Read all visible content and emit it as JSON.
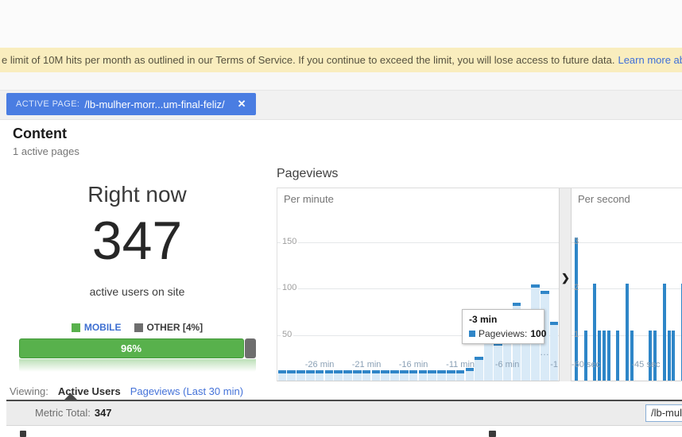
{
  "banner": {
    "text": "e limit of 10M hits per month as outlined in our Terms of Service. If you continue to exceed the limit, you will lose access to future data.",
    "link_text": "Learn more ab"
  },
  "filter_chip": {
    "label": "ACTIVE PAGE:",
    "value": "/lb-mulher-morr...um-final-feliz/",
    "close_icon": "✕"
  },
  "content": {
    "title": "Content",
    "subtitle": "1 active pages"
  },
  "right_now": {
    "title": "Right now",
    "count": "347",
    "subtitle": "active users on site"
  },
  "device_split": {
    "mobile_label": "MOBILE",
    "other_label": "OTHER [4%]",
    "mobile_pct_label": "96%",
    "mobile_color": "#58b14c",
    "other_color": "#6e6e6e"
  },
  "pageviews": {
    "title": "Pageviews",
    "per_minute_label": "Per minute",
    "per_second_label": "Per second",
    "nav_arrow": "❯",
    "ellipsis": "…"
  },
  "tooltip": {
    "title": "-3 min",
    "series_label": "Pageviews:",
    "value": "100"
  },
  "chart_data": [
    {
      "type": "bar",
      "title": "Pageviews per minute",
      "x_unit": "min",
      "x_range": [
        -30,
        -1
      ],
      "values": [
        8,
        8,
        8,
        8,
        8,
        8,
        8,
        8,
        8,
        8,
        8,
        8,
        8,
        8,
        8,
        8,
        8,
        8,
        8,
        8,
        10,
        22,
        42,
        38,
        42,
        80,
        72,
        100,
        93,
        60
      ],
      "tick_labels": [
        "-26 min",
        "-21 min",
        "-16 min",
        "-11 min",
        "-6 min",
        "-1"
      ],
      "tick_indices": [
        4,
        9,
        14,
        19,
        24,
        29
      ],
      "gridlines": [
        50,
        100,
        150
      ],
      "ylim": [
        0,
        175
      ],
      "highlight": {
        "x": "-3 min",
        "value": 100
      },
      "bar_cap_color": "#3086c8",
      "bar_fill_color": "#d9eaf7"
    },
    {
      "type": "bar",
      "title": "Pageviews per second",
      "x_unit": "sec",
      "x_range": [
        -60,
        -37
      ],
      "values": [
        3,
        0,
        1,
        0,
        2,
        1,
        1,
        1,
        0,
        1,
        0,
        2,
        1,
        0,
        0,
        0,
        1,
        1,
        0,
        2,
        1,
        1,
        0,
        2
      ],
      "tick_labels": [
        "-60 sec",
        "-45 sec"
      ],
      "tick_indices": [
        0,
        15
      ],
      "gridlines": [
        1,
        2,
        3
      ],
      "ylim": [
        0,
        3.5
      ],
      "bar_color": "#2e86c8"
    }
  ],
  "viewing": {
    "label": "Viewing:",
    "active_tab": "Active Users",
    "inactive_tab": "Pageviews (Last 30 min)"
  },
  "metric_total": {
    "label": "Metric Total:",
    "value": "347"
  },
  "page_filter": {
    "value": "/lb-mul"
  }
}
